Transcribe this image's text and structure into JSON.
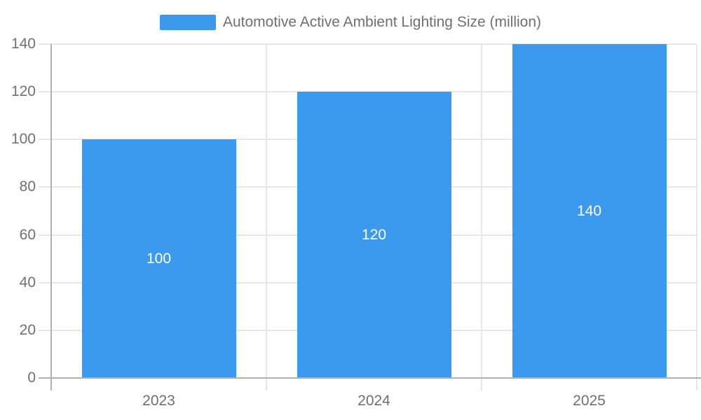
{
  "chart_data": {
    "type": "bar",
    "title": "Automotive Active Ambient Lighting Size (million)",
    "categories": [
      "2023",
      "2024",
      "2025"
    ],
    "values": [
      100,
      120,
      140
    ],
    "bar_value_labels": [
      "100",
      "120",
      "140"
    ],
    "xlabel": "",
    "ylabel": "",
    "ylim": [
      0,
      140
    ],
    "yticks": [
      0,
      20,
      40,
      60,
      80,
      100,
      120,
      140
    ],
    "grid": true,
    "legend_position": "top-center",
    "legend_entries": [
      "Automotive Active Ambient Lighting Size (million)"
    ],
    "colors": {
      "bar": "#3B99EE",
      "bar_value_label": "#FFFFFF",
      "axis_line": "#B0B0B0",
      "grid_line": "#E7E7E7",
      "tick_text": "#707070",
      "legend_text": "#707070",
      "background": "#FFFFFF"
    }
  }
}
